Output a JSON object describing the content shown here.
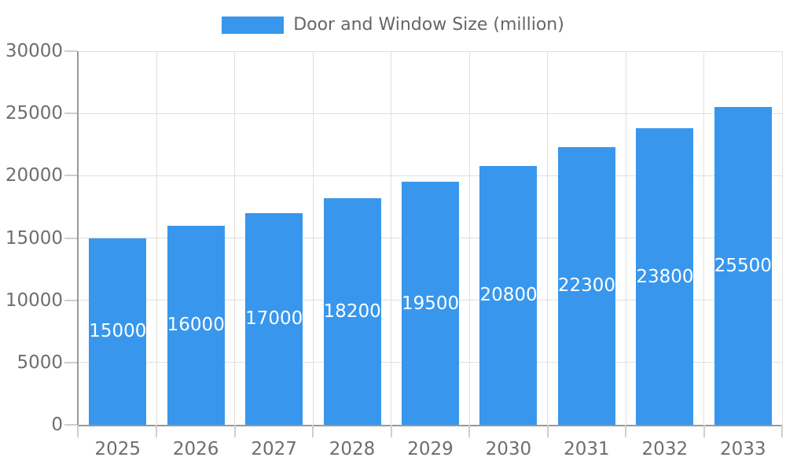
{
  "chart_data": {
    "type": "bar",
    "title": "Door and Window Size (million)",
    "legend_entries": [
      "Door and Window Size (million)"
    ],
    "legend_position": "top",
    "categories": [
      "2025",
      "2026",
      "2027",
      "2028",
      "2029",
      "2030",
      "2031",
      "2032",
      "2033"
    ],
    "series": [
      {
        "name": "Door and Window Size (million)",
        "values": [
          15000,
          16000,
          17000,
          18200,
          19500,
          20800,
          22300,
          23800,
          25500
        ]
      }
    ],
    "value_labels": [
      "15000",
      "16000",
      "17000",
      "18200",
      "19500",
      "20800",
      "22300",
      "23800",
      "25500"
    ],
    "xlabel": "",
    "ylabel": "",
    "ylim": [
      0,
      30000
    ],
    "yticks": [
      0,
      5000,
      10000,
      15000,
      20000,
      25000,
      30000
    ],
    "ytick_labels": [
      "0",
      "5000",
      "10000",
      "15000",
      "20000",
      "25000",
      "30000"
    ],
    "grid": true,
    "colors": {
      "bar": "#3897EC",
      "value_label": "#FFFFFF",
      "axis_text": "#6E6E6E",
      "legend_text": "#666666",
      "gridline": "#E0E0E0",
      "axis_line": "#999999",
      "tick": "#CFCFCF",
      "background": "#FFFFFF"
    }
  }
}
